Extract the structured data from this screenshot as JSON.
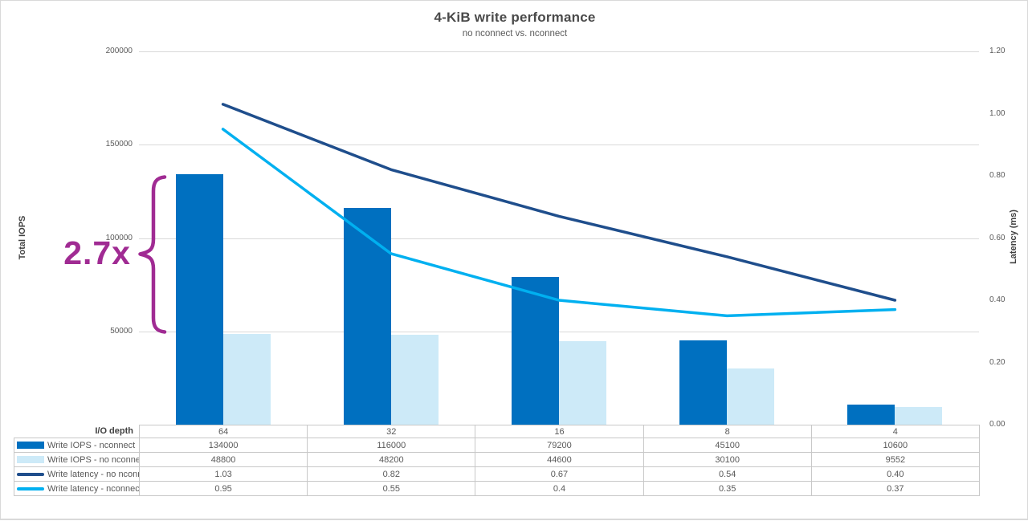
{
  "title": "4-KiB write performance",
  "subtitle": "no nconnect vs. nconnect",
  "annotation": {
    "text": "2.7x",
    "color": "#A02B93"
  },
  "colors": {
    "bar_nconnect": "#0070C0",
    "bar_no_nconnect": "#CDEAF8",
    "line_no_nconnect": "#1F4E8C",
    "line_nconnect": "#00B0F0",
    "gridline": "#D9D9D9",
    "table_border": "#C8C8C8",
    "text": "#595959"
  },
  "chart_data": {
    "type": "bar",
    "subtype": "bar+line combo, dual axis",
    "categories": [
      "64",
      "32",
      "16",
      "8",
      "4"
    ],
    "x_axis_title": "I/O depth",
    "left_axis": {
      "label": "Total IOPS",
      "min": 0,
      "max": 200000,
      "tick_values": [
        200000,
        150000,
        100000,
        50000
      ],
      "tick_labels": [
        "200000",
        "150000",
        "100000",
        "50000"
      ],
      "grid": true
    },
    "right_axis": {
      "label": "Latency (ms)",
      "min": 0,
      "max": 1.2,
      "tick_labels": [
        "1.20",
        "1.00",
        "0.80",
        "0.60",
        "0.40",
        "0.20",
        "0.00"
      ],
      "grid": false
    },
    "legend_position": "table-left",
    "series": [
      {
        "name": "Write IOPS - nconnect",
        "type": "bar",
        "axis": "left",
        "color": "#0070C0",
        "values": [
          134000,
          116000,
          79200,
          45100,
          10600
        ],
        "display": [
          "134000",
          "116000",
          "79200",
          "45100",
          "10600"
        ]
      },
      {
        "name": "Write IOPS - no nconnect",
        "type": "bar",
        "axis": "left",
        "color": "#CDEAF8",
        "values": [
          48800,
          48200,
          44600,
          30100,
          9552
        ],
        "display": [
          "48800",
          "48200",
          "44600",
          "30100",
          "9552"
        ]
      },
      {
        "name": "Write latency - no nconnect",
        "type": "line",
        "axis": "right",
        "color": "#1F4E8C",
        "values": [
          1.03,
          0.82,
          0.67,
          0.54,
          0.4
        ],
        "display": [
          "1.03",
          "0.82",
          "0.67",
          "0.54",
          "0.40"
        ]
      },
      {
        "name": "Write latency - nconnect",
        "type": "line",
        "axis": "right",
        "color": "#00B0F0",
        "values": [
          0.95,
          0.55,
          0.4,
          0.35,
          0.37
        ],
        "display": [
          "0.95",
          "0.55",
          "0.4",
          "0.35",
          "0.37"
        ]
      }
    ]
  }
}
